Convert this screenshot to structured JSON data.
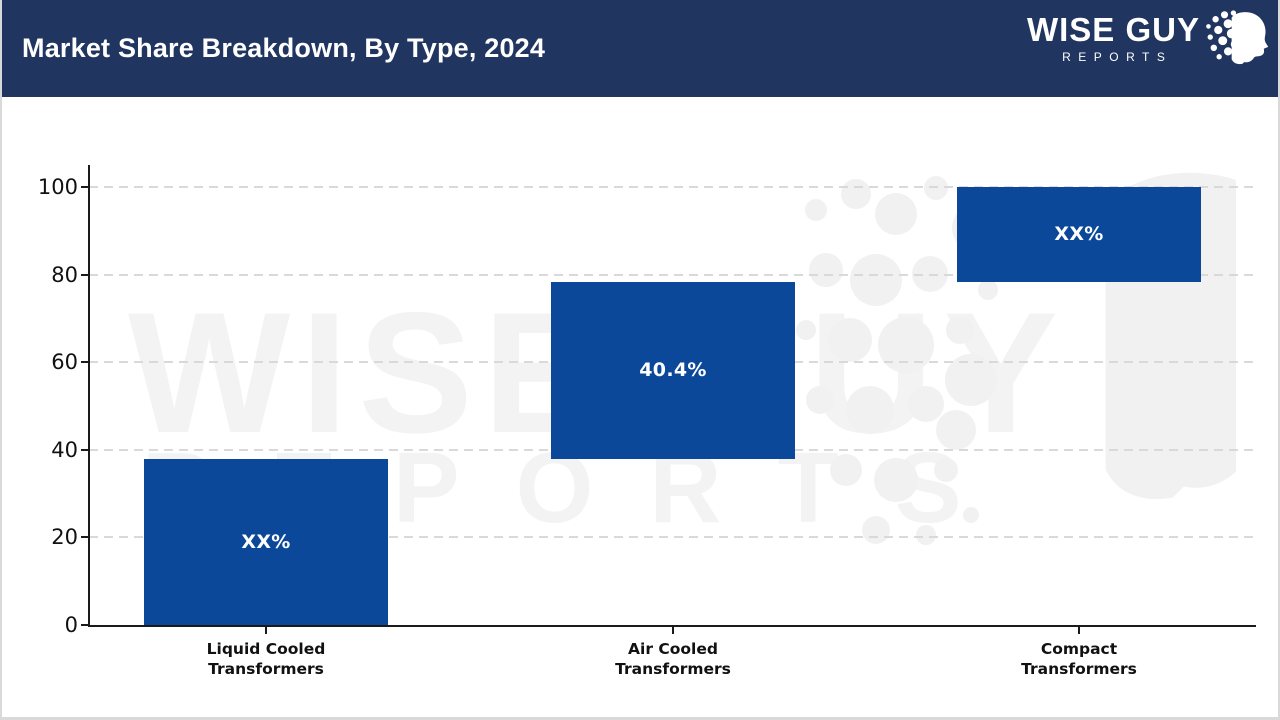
{
  "header": {
    "title": "Market Share Breakdown, By Type, 2024",
    "logo": {
      "line1": "WISE GUY",
      "line2": "REPORTS"
    }
  },
  "watermark": {
    "line1": "WISE GUY",
    "line2": "REPORTS"
  },
  "chart_data": {
    "type": "bar",
    "variant": "waterfall",
    "title": "Market Share Breakdown, By Type, 2024",
    "categories": [
      {
        "line1": "Liquid Cooled",
        "line2": "Transformers"
      },
      {
        "line1": "Air Cooled",
        "line2": "Transformers"
      },
      {
        "line1": "Compact",
        "line2": "Transformers"
      }
    ],
    "segments": [
      {
        "category": "Liquid Cooled Transformers",
        "start": 0,
        "end": 38,
        "value": 38,
        "label": "XX%"
      },
      {
        "category": "Air Cooled Transformers",
        "start": 38,
        "end": 78.4,
        "value": 40.4,
        "label": "40.4%"
      },
      {
        "category": "Compact Transformers",
        "start": 78.4,
        "end": 100,
        "value": 21.6,
        "label": "XX%"
      }
    ],
    "ylim": [
      0,
      100
    ],
    "yticks": [
      0,
      20,
      40,
      60,
      80,
      100
    ],
    "yticklabels": [
      "0",
      "20",
      "40",
      "60",
      "80",
      "100"
    ],
    "grid": "horizontal-dashed",
    "legend": "none",
    "bar_color": "#0B4899",
    "bar_label_color": "#FFFFFF"
  },
  "colors": {
    "header_bg": "#20355F",
    "bar": "#0B4899",
    "gridline": "#D9D9D9",
    "axis": "#1A1A1A",
    "watermark": "#F3F3F3",
    "page_border": "#D9D9D9"
  }
}
